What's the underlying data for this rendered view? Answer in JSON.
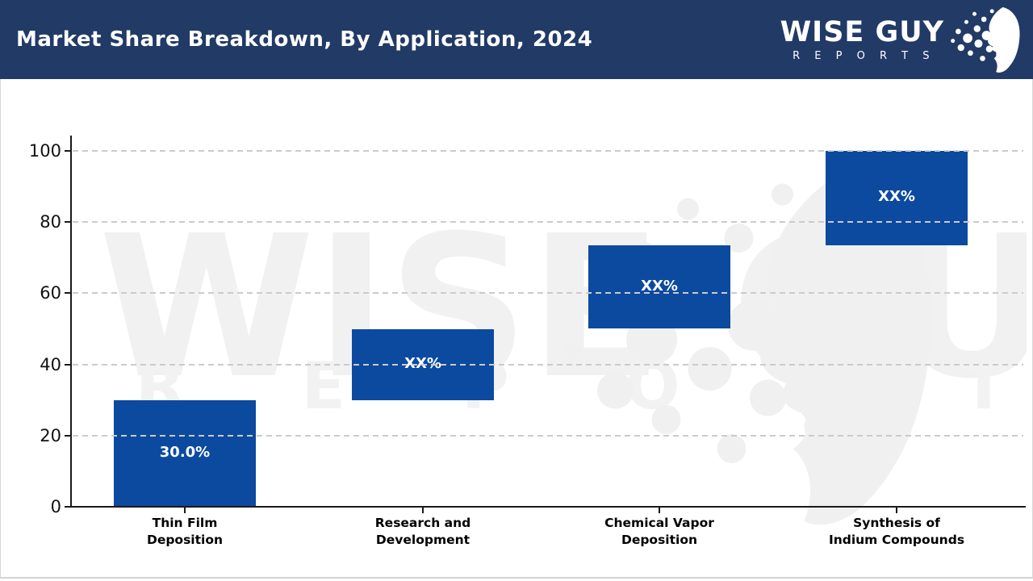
{
  "header": {
    "title": "Market Share Breakdown, By Application, 2024",
    "logo_name": "WISE GUY",
    "logo_subtitle": "R E P O R T S",
    "header_bg": "#213a66"
  },
  "watermark": {
    "line1": "WISE GUY",
    "line2": "R E P O R T S"
  },
  "chart_data": {
    "type": "bar",
    "subtype": "waterfall",
    "title": "Market Share Breakdown, By Application, 2024",
    "categories": [
      "Thin Film Deposition",
      "Research and Development",
      "Chemical Vapor Deposition",
      "Synthesis of Indium Compounds"
    ],
    "category_lines": [
      [
        "Thin Film",
        "Deposition"
      ],
      [
        "Research and",
        "Development"
      ],
      [
        "Chemical Vapor",
        "Deposition"
      ],
      [
        "Synthesis of",
        "Indium Compounds"
      ]
    ],
    "segments": [
      {
        "category": "Thin Film Deposition",
        "start": 0,
        "end": 30,
        "label": "30.0%"
      },
      {
        "category": "Research and Development",
        "start": 30,
        "end": 50,
        "label": "XX%"
      },
      {
        "category": "Chemical Vapor Deposition",
        "start": 50,
        "end": 73.5,
        "label": "XX%"
      },
      {
        "category": "Synthesis of Indium Compounds",
        "start": 73.5,
        "end": 100,
        "label": "XX%"
      }
    ],
    "yticks": [
      0,
      20,
      40,
      60,
      80,
      100
    ],
    "ylim": [
      0,
      100
    ],
    "xlabel": "",
    "ylabel": "",
    "legend": "none",
    "grid": "dashed horizontal gridlines drawn over bars",
    "bar_color": "#0c4aa0",
    "bar_label_color": "#ffffff"
  },
  "colors": {
    "header_bg": "#213a66",
    "bar_blue": "#0c4aa0",
    "gridline": "#cbcbcb",
    "axis": "#1a1a1a",
    "watermark": "#f1f1f1",
    "frame_border": "#d8d8d8"
  }
}
